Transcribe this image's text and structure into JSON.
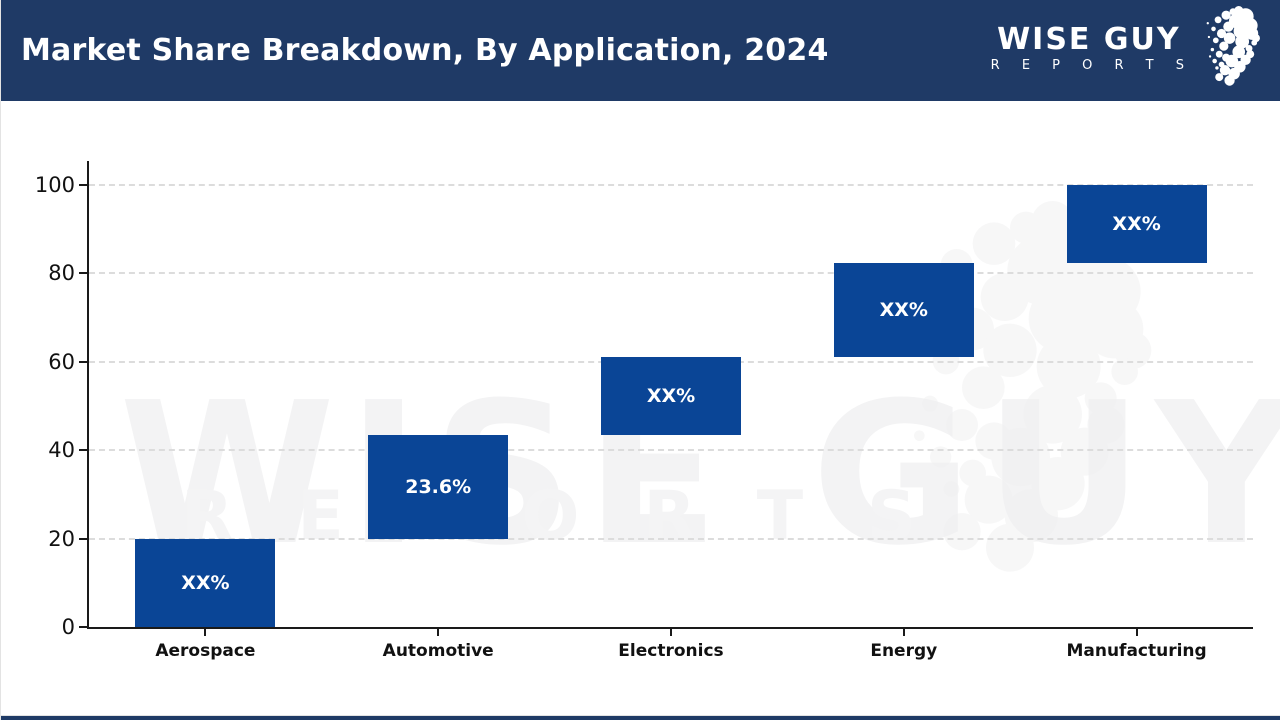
{
  "header": {
    "title": "Market Share Breakdown, By Application, 2024",
    "bg_color": "#1f3a66",
    "logo": {
      "line1": "WISE GUY",
      "line2": "R E P O R T S"
    }
  },
  "watermark": {
    "line1": "WISE GUY",
    "line2": "REPORTS"
  },
  "footer": {
    "bar_color": "#1f3a66"
  },
  "chart_data": {
    "type": "bar",
    "subtype": "waterfall",
    "title": "Market Share Breakdown, By Application, 2024",
    "xlabel": "",
    "ylabel": "",
    "categories": [
      "Aerospace",
      "Automotive",
      "Electronics",
      "Energy",
      "Manufacturing"
    ],
    "segments": [
      {
        "category": "Aerospace",
        "start": 0,
        "end": 19.8,
        "label": "XX%"
      },
      {
        "category": "Automotive",
        "start": 19.8,
        "end": 43.4,
        "label": "23.6%"
      },
      {
        "category": "Electronics",
        "start": 43.4,
        "end": 61.0,
        "label": "XX%"
      },
      {
        "category": "Energy",
        "start": 61.0,
        "end": 82.4,
        "label": "XX%"
      },
      {
        "category": "Manufacturing",
        "start": 82.4,
        "end": 100,
        "label": "XX%"
      }
    ],
    "y_ticks": [
      0,
      20,
      40,
      60,
      80,
      100
    ],
    "ylim": [
      0,
      104.5
    ],
    "grid": "horizontal-dashed",
    "gridline_color": "#dcdcdc",
    "bar_color": "#0a4596",
    "bar_label_color": "#ffffff",
    "axis_color": "#1a1a1a",
    "legend": "none"
  }
}
